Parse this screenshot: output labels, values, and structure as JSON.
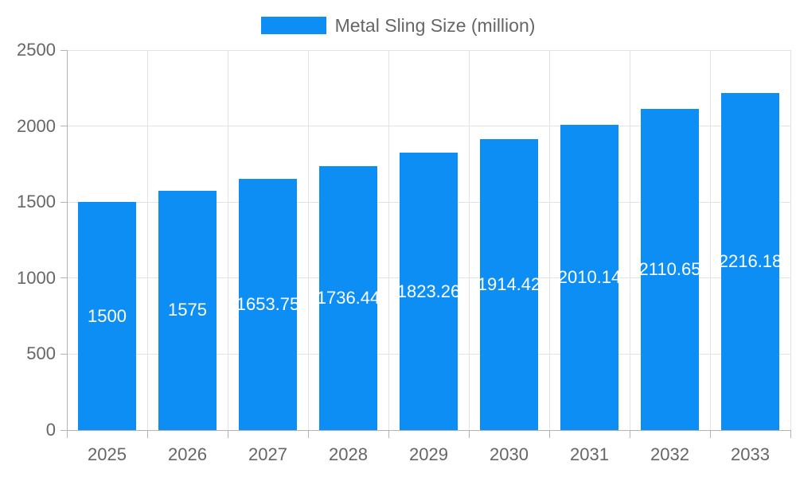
{
  "chart_data": {
    "type": "bar",
    "legend": {
      "label": "Metal Sling Size (million)",
      "position": "top"
    },
    "categories": [
      "2025",
      "2026",
      "2027",
      "2028",
      "2029",
      "2030",
      "2031",
      "2032",
      "2033"
    ],
    "series": [
      {
        "name": "Metal Sling Size (million)",
        "values": [
          1500,
          1575,
          1653.75,
          1736.44,
          1823.26,
          1914.42,
          2010.14,
          2110.65,
          2216.18
        ]
      }
    ],
    "value_labels": [
      "1500",
      "1575",
      "1653.75",
      "1736.44",
      "1823.26",
      "1914.42",
      "2010.14",
      "2110.65",
      "2216.18"
    ],
    "xlabel": "",
    "ylabel": "",
    "ylim": [
      0,
      2500
    ],
    "yticks": [
      0,
      500,
      1000,
      1500,
      2000,
      2500
    ],
    "grid": true,
    "value_label_position": "center",
    "colors": {
      "bar": "#0d8ef5",
      "grid": "#e3e3e3",
      "axis": "#b3b3b3",
      "tick_label": "#666666",
      "legend_text": "#666666",
      "bar_label": "#ffffff",
      "background": "#ffffff"
    }
  }
}
